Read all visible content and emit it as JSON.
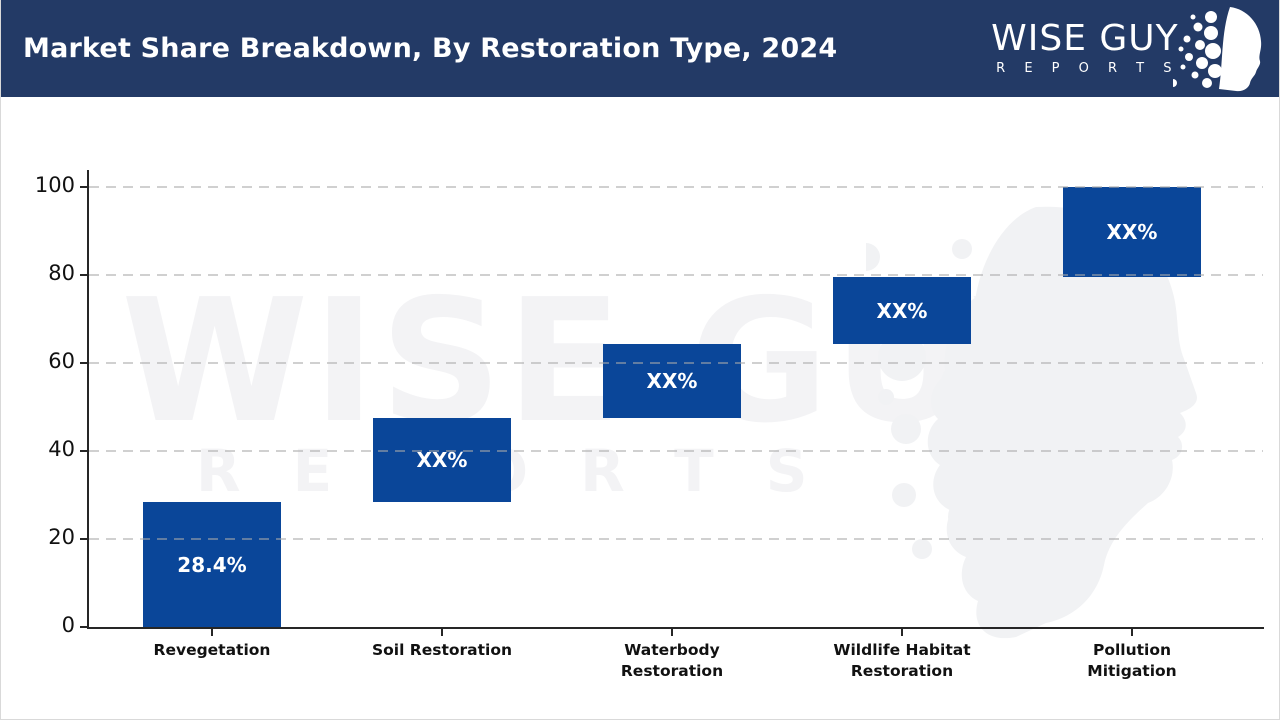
{
  "header": {
    "title": "Market Share Breakdown, By Restoration Type, 2024",
    "bg_color": "#233a66",
    "logo": {
      "name": "WISE GUY",
      "subname": "R E P O R T S"
    }
  },
  "watermark": {
    "line1": "WISE GUY",
    "line2": "REPORTS"
  },
  "chart_data": {
    "type": "bar",
    "subtype": "waterfall",
    "title": "Market Share Breakdown, By Restoration Type, 2024",
    "categories": [
      "Revegetation",
      "Soil Restoration",
      "Waterbody Restoration",
      "Wildlife Habitat Restoration",
      "Pollution Mitigation"
    ],
    "tick_labels": [
      "Revegetation",
      "Soil Restoration",
      "Waterbody\nRestoration",
      "Wildlife Habitat\nRestoration",
      "Pollution\nMitigation"
    ],
    "segments": [
      {
        "start": 0,
        "end": 28.4,
        "label": "28.4%"
      },
      {
        "start": 28.4,
        "end": 47.5,
        "label": "XX%"
      },
      {
        "start": 47.5,
        "end": 64.3,
        "label": "XX%"
      },
      {
        "start": 64.3,
        "end": 79.5,
        "label": "XX%"
      },
      {
        "start": 79.5,
        "end": 100,
        "label": "XX%"
      }
    ],
    "ylim": [
      0,
      100
    ],
    "yticks": [
      0,
      20,
      40,
      60,
      80,
      100
    ],
    "grid": "dashed-horizontal",
    "legend_position": "none",
    "bar_color": "#0a4699",
    "bar_label_color": "#ffffff",
    "axis_color": "#262626",
    "gridline_color": "#d6d6d6"
  }
}
